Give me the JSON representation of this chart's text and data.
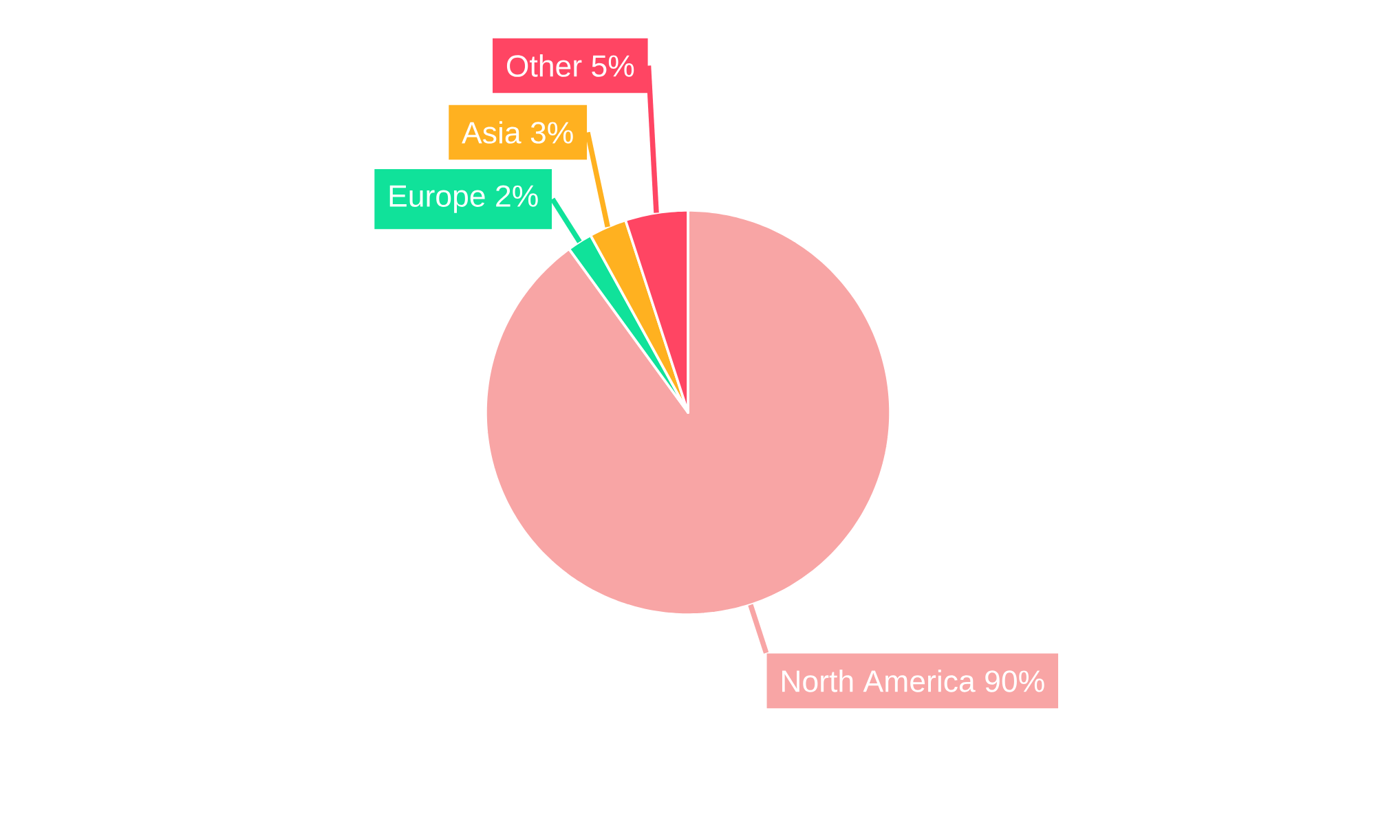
{
  "chart_data": {
    "type": "pie",
    "categories": [
      "North America",
      "Europe",
      "Asia",
      "Other"
    ],
    "values": [
      90,
      2,
      3,
      5
    ],
    "value_labels": [
      "90%",
      "2%",
      "3%",
      "5%"
    ],
    "colors": [
      "#f8a5a5",
      "#10e29a",
      "#ffb120",
      "#ff4563"
    ]
  }
}
